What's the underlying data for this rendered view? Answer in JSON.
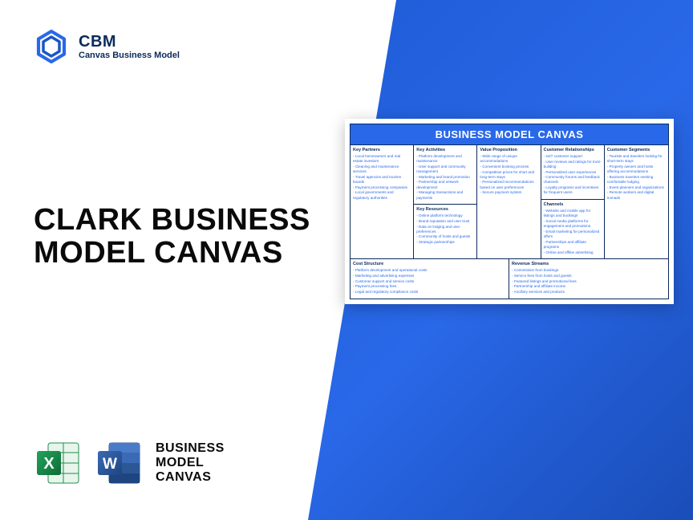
{
  "colors": {
    "brand_blue": "#2968e8",
    "brand_dark": "#0b2a5b",
    "excel_green": "#1f8f4e",
    "excel_dark": "#0e6b37",
    "word_blue": "#2b5797",
    "word_light": "#4a7bc8"
  },
  "header": {
    "title": "CBM",
    "subtitle": "Canvas Business Model"
  },
  "main": {
    "title_line1": "CLARK BUSINESS",
    "title_line2": "MODEL CANVAS"
  },
  "footer": {
    "line1": "BUSINESS",
    "line2": "MODEL",
    "line3": "CANVAS"
  },
  "canvas": {
    "title": "BUSINESS MODEL CANVAS",
    "sections": {
      "key_partners": {
        "label": "Key Partners",
        "items": [
          "Local homeowners and real estate investors",
          "Cleaning and maintenance services",
          "Travel agencies and tourism boards",
          "Payment processing companies",
          "Local governments and regulatory authorities"
        ]
      },
      "key_activities": {
        "label": "Key Activities",
        "items": [
          "Platform development and maintenance",
          "User support and community management",
          "Marketing and brand promotion",
          "Partnership and network development",
          "Managing transactions and payments"
        ]
      },
      "key_resources": {
        "label": "Key Resources",
        "items": [
          "Online platform technology",
          "Brand reputation and user trust",
          "Data on lodging and user preferences",
          "Community of hosts and guests",
          "Strategic partnerships"
        ]
      },
      "value_proposition": {
        "label": "Value Proposition",
        "items": [
          "Wide range of unique accommodations",
          "Convenient booking process",
          "Competitive prices for short and long-term stays",
          "Personalized recommendations based on user preferences",
          "Secure payment system"
        ]
      },
      "customer_relationships": {
        "label": "Customer Relationships",
        "items": [
          "24/7 customer support",
          "User reviews and ratings for trust-building",
          "Personalized user experiences",
          "Community forums and feedback channels",
          "Loyalty programs and incentives for frequent users"
        ]
      },
      "channels": {
        "label": "Channels",
        "items": [
          "Website and mobile app for listings and bookings",
          "Social media platforms for engagement and promotions",
          "Email marketing for personalized offers",
          "Partnerships and affiliate programs",
          "Online and offline advertising"
        ]
      },
      "customer_segments": {
        "label": "Customer Segments",
        "items": [
          "Tourists and travelers looking for short-term stays",
          "Property owners and hosts offering accommodations",
          "Business travelers seeking comfortable lodging",
          "Event planners and organizations",
          "Remote workers and digital nomads"
        ]
      },
      "cost_structure": {
        "label": "Cost Structure",
        "items": [
          "Platform development and operational costs",
          "Marketing and advertising expenses",
          "Customer support and service costs",
          "Payment processing fees",
          "Legal and regulatory compliance costs"
        ]
      },
      "revenue_streams": {
        "label": "Revenue Streams",
        "items": [
          "Commission from bookings",
          "Service fees from hosts and guests",
          "Featured listings and promotional fees",
          "Partnership and affiliate income",
          "Ancillary services and products"
        ]
      }
    }
  }
}
